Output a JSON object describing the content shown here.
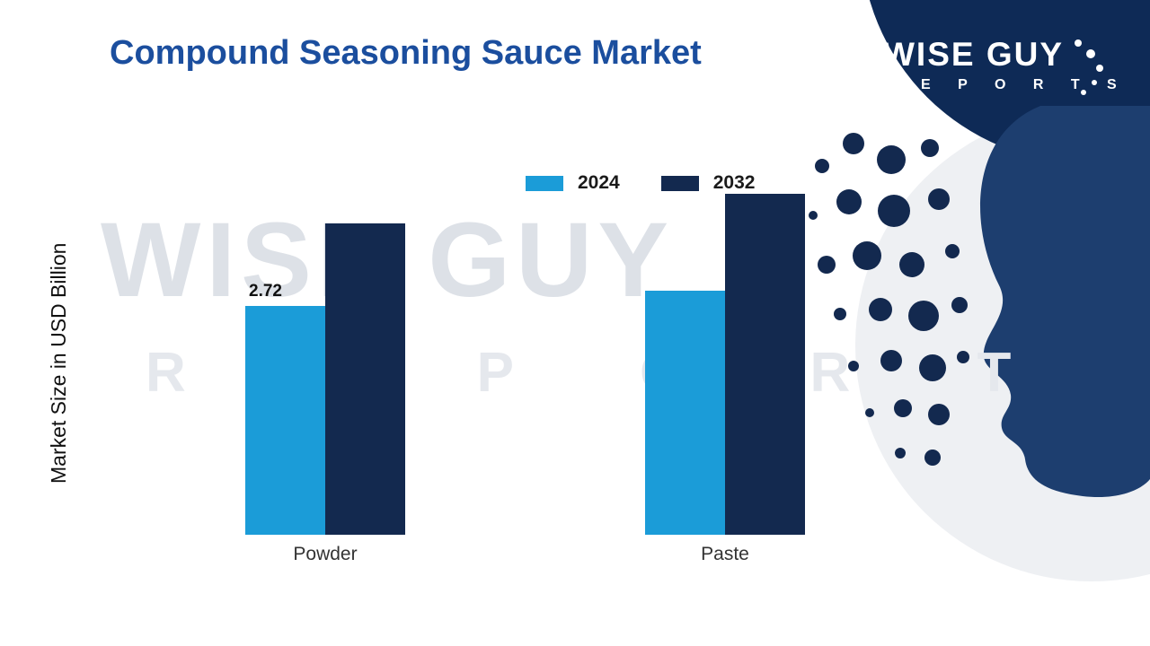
{
  "title": "Compound Seasoning Sauce Market",
  "logo": {
    "line1": "WISE GUY",
    "line2": "R E P O R T S"
  },
  "watermark": {
    "line1": "WISE GUY",
    "line2": "R E P O R T"
  },
  "colors": {
    "series_2024": "#1b9cd8",
    "series_2032": "#13294f",
    "title_blue": "#1b4e9e",
    "logo_navy": "#0e2a56",
    "decoration_gray": "#eef0f3"
  },
  "chart_data": {
    "type": "bar",
    "title": "Compound Seasoning Sauce Market",
    "categories": [
      "Powder",
      "Paste"
    ],
    "series": [
      {
        "name": "2024",
        "color": "#1b9cd8",
        "values": [
          2.72,
          2.9
        ]
      },
      {
        "name": "2032",
        "color": "#13294f",
        "values": [
          3.7,
          4.05
        ]
      }
    ],
    "xlabel": "",
    "ylabel": "Market Size in USD Billion",
    "ylim": [
      0,
      4.5
    ],
    "grid": false,
    "legend_position": "top",
    "annotations": [
      {
        "series": "2024",
        "category": "Powder",
        "label": "2.72"
      }
    ]
  }
}
